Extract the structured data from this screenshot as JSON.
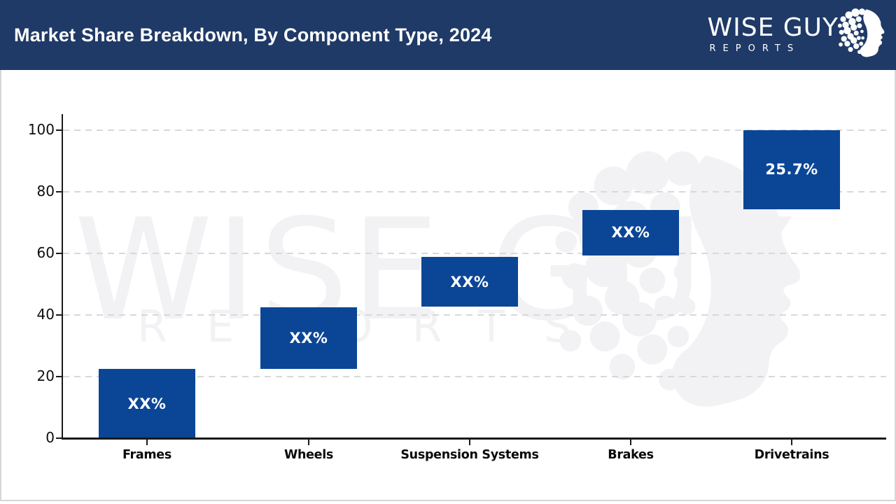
{
  "header": {
    "title": "Market Share Breakdown, By Component Type, 2024",
    "logo": {
      "line1": "WISE GUY",
      "line2": "REPORTS"
    }
  },
  "watermark": {
    "line1": "WISE GUY",
    "line2": "REPORTS"
  },
  "colors": {
    "header_bg": "#1f3a67",
    "bar": "#0b4696",
    "bar_label": "#ffffff",
    "gridline": "#d8d8d8",
    "axis": "#1a1a1a",
    "watermark": "#f2f2f4",
    "frame_border": "#d6d6d6"
  },
  "chart_data": {
    "type": "bar",
    "subtype": "waterfall",
    "title": "Market Share Breakdown, By Component Type, 2024",
    "xlabel": "",
    "ylabel": "",
    "categories": [
      "Frames",
      "Wheels",
      "Suspension Systems",
      "Brakes",
      "Drivetrains"
    ],
    "segments": [
      {
        "category": "Frames",
        "start": 0,
        "end": 22.4,
        "label": "XX%"
      },
      {
        "category": "Wheels",
        "start": 22.4,
        "end": 42.4,
        "label": "XX%"
      },
      {
        "category": "Suspension Systems",
        "start": 42.6,
        "end": 58.7,
        "label": "XX%"
      },
      {
        "category": "Brakes",
        "start": 59.2,
        "end": 74.1,
        "label": "XX%"
      },
      {
        "category": "Drivetrains",
        "start": 74.3,
        "end": 100,
        "label": "25.7%"
      }
    ],
    "y_ticks": [
      0,
      20,
      40,
      60,
      80,
      100
    ],
    "ylim": [
      0,
      105
    ],
    "grid": "horizontal dashed",
    "legend": "none"
  }
}
